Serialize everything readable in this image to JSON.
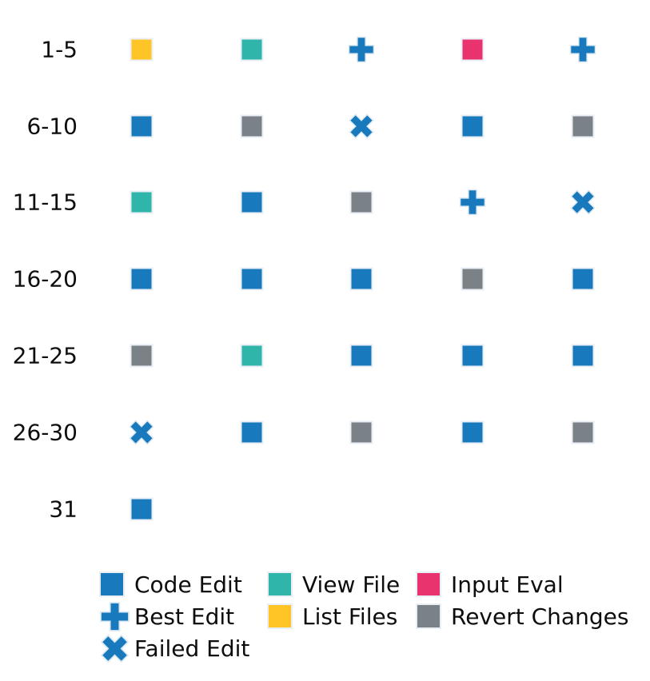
{
  "chart_data": {
    "type": "scatter",
    "title": "",
    "xlabel": "",
    "ylabel": "",
    "grid": false,
    "description_of_encoding": "Grid of action markers: each row shows 5 sequential actions, labeled by action-number ranges",
    "row_labels": [
      "1-5",
      "6-10",
      "11-15",
      "16-20",
      "21-25",
      "26-30",
      "31"
    ],
    "rows": [
      [
        "List Files",
        "View File",
        "Best Edit",
        "Input Eval",
        "Best Edit"
      ],
      [
        "Code Edit",
        "Revert Changes",
        "Failed Edit",
        "Code Edit",
        "Revert Changes"
      ],
      [
        "View File",
        "Code Edit",
        "Revert Changes",
        "Best Edit",
        "Failed Edit"
      ],
      [
        "Code Edit",
        "Code Edit",
        "Code Edit",
        "Revert Changes",
        "Code Edit"
      ],
      [
        "Revert Changes",
        "View File",
        "Code Edit",
        "Code Edit",
        "Code Edit"
      ],
      [
        "Failed Edit",
        "Code Edit",
        "Revert Changes",
        "Code Edit",
        "Revert Changes"
      ],
      [
        "Code Edit"
      ]
    ],
    "markers": {
      "Code Edit": {
        "shape": "square",
        "color": "#1879BD"
      },
      "View File": {
        "shape": "square",
        "color": "#2FB5A9"
      },
      "Input Eval": {
        "shape": "square",
        "color": "#E8336E"
      },
      "Best Edit": {
        "shape": "plus",
        "color": "#1879BD"
      },
      "List Files": {
        "shape": "square",
        "color": "#FFC425"
      },
      "Revert Changes": {
        "shape": "square",
        "color": "#7A8288"
      },
      "Failed Edit": {
        "shape": "x",
        "color": "#1879BD"
      }
    },
    "legend": {
      "position": "bottom",
      "columns": [
        [
          "Code Edit",
          "Best Edit",
          "Failed Edit"
        ],
        [
          "View File",
          "List Files"
        ],
        [
          "Input Eval",
          "Revert Changes"
        ]
      ]
    }
  }
}
